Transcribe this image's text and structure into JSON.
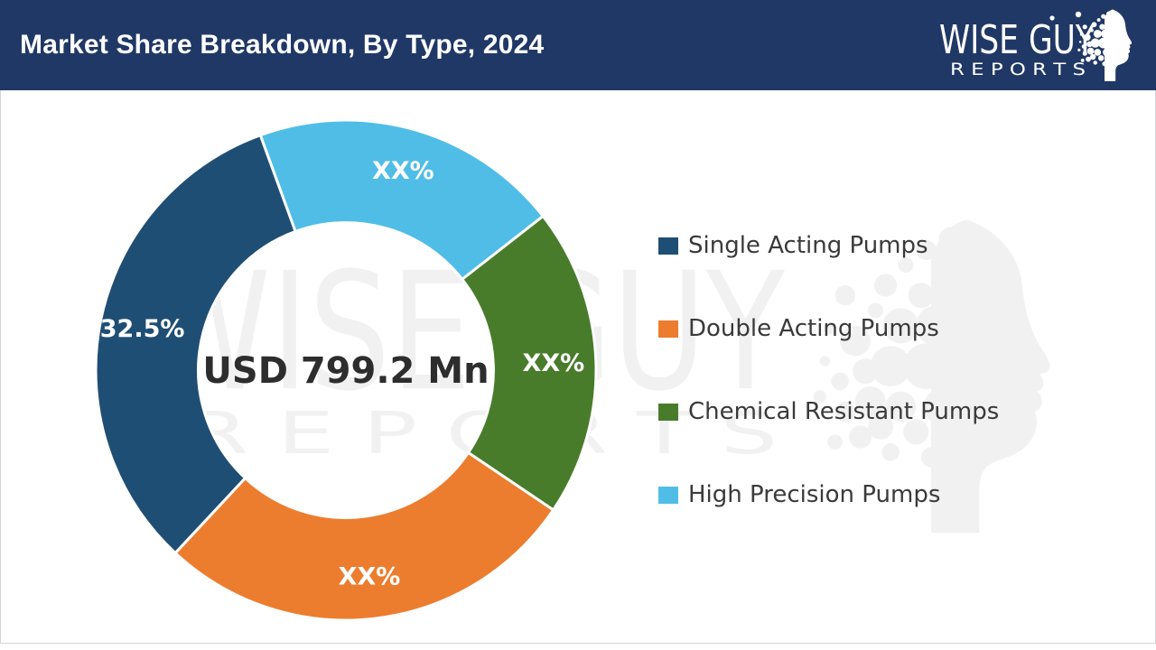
{
  "header": {
    "title": "Market Share Breakdown, By Type, 2024",
    "logo_line1": "WISE GUY",
    "logo_line2": "R E P O R T S"
  },
  "chart_data": {
    "type": "pie",
    "subtype": "donut",
    "title": "Market Share Breakdown, By Type, 2024",
    "center_label": "USD 799.2 Mn",
    "start_angle_deg": 110,
    "direction": "clockwise",
    "outer_radius_px": 277,
    "inner_radius_ratio": 0.59,
    "legend_position": "right",
    "slices": [
      {
        "label": "High Precision Pumps",
        "value_pct": 20,
        "display": "XX%",
        "color": "#50bde7"
      },
      {
        "label": "Chemical Resistant Pumps",
        "value_pct": 20,
        "display": "XX%",
        "color": "#487c2b"
      },
      {
        "label": "Double Acting Pumps",
        "value_pct": 27.5,
        "display": "XX%",
        "color": "#ec7d2f"
      },
      {
        "label": "Single Acting Pumps",
        "value_pct": 32.5,
        "display": "32.5%",
        "color": "#1f4e74"
      }
    ]
  },
  "legend": {
    "items": [
      {
        "label": "Single Acting Pumps",
        "color": "#1f4e74"
      },
      {
        "label": "Double Acting Pumps",
        "color": "#ec7d2f"
      },
      {
        "label": "Chemical Resistant Pumps",
        "color": "#487c2b"
      },
      {
        "label": "High Precision Pumps",
        "color": "#50bde7"
      }
    ]
  },
  "watermark": {
    "line1": "WISE GUY",
    "line2": "R E P O R T S"
  },
  "colors": {
    "header_bg": "#203865",
    "content_border": "#d2d4d5",
    "center_text": "#2d2d2d",
    "legend_text": "#3a3a3a",
    "watermark": "#f1f1f2",
    "slice_gap": "#ffffff"
  }
}
